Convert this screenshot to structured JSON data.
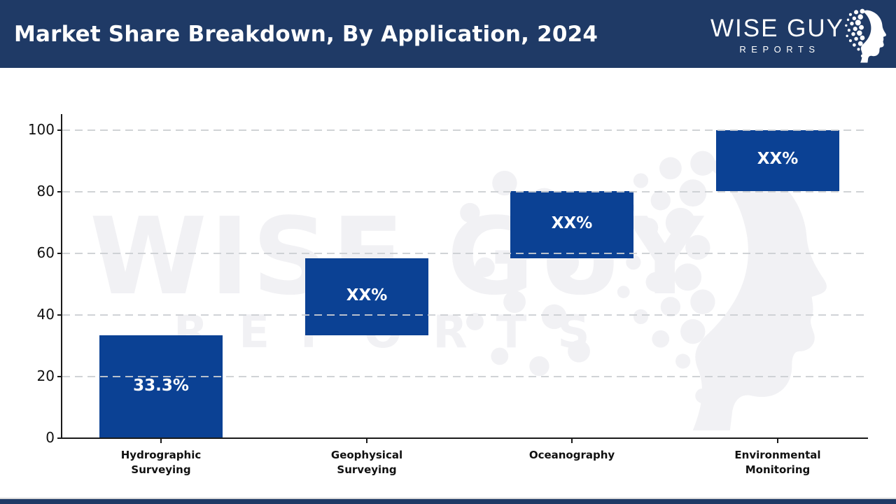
{
  "header": {
    "title": "Market Share Breakdown, By Application, 2024",
    "logo": {
      "brand": "WISE GUY",
      "sub": "REPORTS"
    }
  },
  "watermark": {
    "brand": "WISE GUY",
    "sub": "REPORTS"
  },
  "chart_data": {
    "type": "bar",
    "subtype": "waterfall",
    "title": "Market Share Breakdown, By Application, 2024",
    "categories": [
      "Hydrographic Surveying",
      "Geophysical Surveying",
      "Oceanography",
      "Environmental Monitoring"
    ],
    "category_lines": [
      [
        "Hydrographic",
        "Surveying"
      ],
      [
        "Geophysical",
        "Surveying"
      ],
      [
        "Oceanography"
      ],
      [
        "Environmental",
        "Monitoring"
      ]
    ],
    "segments": [
      {
        "start": 0,
        "end": 33.3,
        "label": "33.3%"
      },
      {
        "start": 33.3,
        "end": 58.3,
        "label": "XX%"
      },
      {
        "start": 58.3,
        "end": 80.3,
        "label": "XX%"
      },
      {
        "start": 80.3,
        "end": 100,
        "label": "XX%"
      }
    ],
    "yticks": [
      0,
      20,
      40,
      60,
      80,
      100
    ],
    "ylim": [
      0,
      105
    ],
    "grid": true,
    "legend": false,
    "bar_color": "#0b4194",
    "colors": {
      "band_navy": "#1f3a66",
      "grid": "#cbced2",
      "axis": "#1a1a1a",
      "value_label": "#ffffff",
      "watermark": "#f1f1f4"
    }
  }
}
